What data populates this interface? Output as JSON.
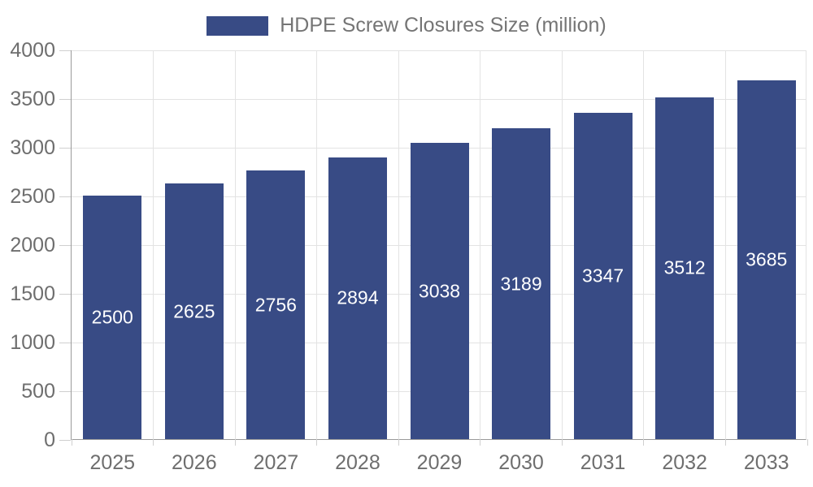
{
  "chart_data": {
    "type": "bar",
    "legend_label": "HDPE Screw Closures Size (million)",
    "legend_position": "top",
    "categories": [
      "2025",
      "2026",
      "2027",
      "2028",
      "2029",
      "2030",
      "2031",
      "2032",
      "2033"
    ],
    "values": [
      2500,
      2625,
      2756,
      2894,
      3038,
      3189,
      3347,
      3512,
      3685
    ],
    "xlabel": "",
    "ylabel": "",
    "ylim": [
      0,
      4000
    ],
    "yticks": [
      0,
      500,
      1000,
      1500,
      2000,
      2500,
      3000,
      3500,
      4000
    ],
    "grid": true,
    "bar_color": "#384B85",
    "value_label_color": "#ffffff",
    "axis_text_color": "#6e6e6e",
    "grid_color": "#e3e3e3",
    "axis_line_color": "#9a9a9a",
    "tick_color": "#cfcfcf"
  }
}
